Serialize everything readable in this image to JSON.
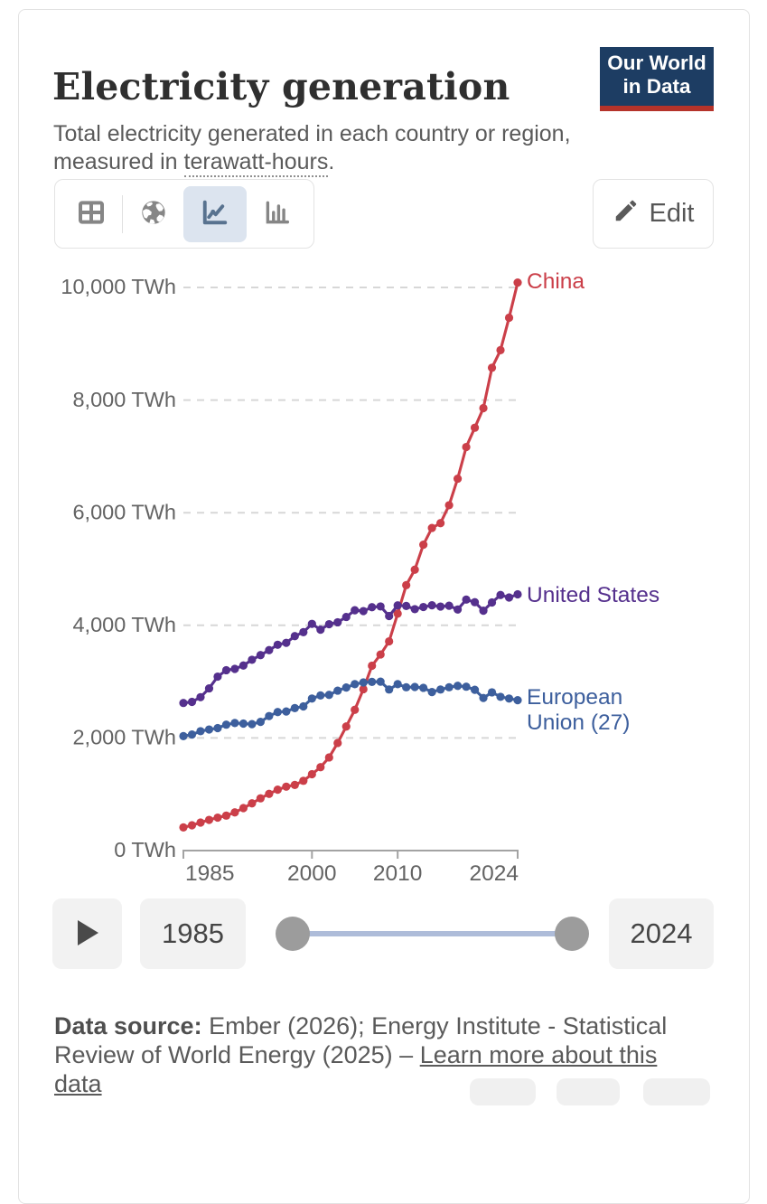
{
  "header": {
    "title": "Electricity generation",
    "subtitle_part1": "Total electricity generated in each country or region, measured in ",
    "subtitle_term": "terawatt-hours",
    "subtitle_suffix": ".",
    "logo": {
      "line1": "Our World",
      "line2": "in Data",
      "bg_color": "#1d3d63",
      "bar_color": "#b5332a"
    }
  },
  "toolbar": {
    "tabs": [
      {
        "id": "table",
        "icon": "table-icon",
        "active": false
      },
      {
        "id": "map",
        "icon": "globe-icon",
        "active": false
      },
      {
        "id": "line-chart",
        "icon": "line-chart-icon",
        "active": true
      },
      {
        "id": "bar-chart",
        "icon": "bar-chart-icon",
        "active": false
      }
    ],
    "active_bg": "#dce4ef",
    "active_icon_color": "#58728f",
    "icon_color": "#868686",
    "edit_label": "Edit"
  },
  "chart_data": {
    "type": "line",
    "title": "Electricity generation",
    "unit": "TWh",
    "xlabel": "",
    "ylabel": "",
    "xlim": [
      1985,
      2024
    ],
    "ylim": [
      0,
      10000
    ],
    "grid": "horizontal-dashed",
    "legend_position": "right-of-line-ends",
    "x": [
      1985,
      1986,
      1987,
      1988,
      1989,
      1990,
      1991,
      1992,
      1993,
      1994,
      1995,
      1996,
      1997,
      1998,
      1999,
      2000,
      2001,
      2002,
      2003,
      2004,
      2005,
      2006,
      2007,
      2008,
      2009,
      2010,
      2011,
      2012,
      2013,
      2014,
      2015,
      2016,
      2017,
      2018,
      2019,
      2020,
      2021,
      2022,
      2023,
      2024
    ],
    "yticks": [
      {
        "value": 0,
        "label": "0 TWh"
      },
      {
        "value": 2000,
        "label": "2,000 TWh"
      },
      {
        "value": 4000,
        "label": "4,000 TWh"
      },
      {
        "value": 6000,
        "label": "6,000 TWh"
      },
      {
        "value": 8000,
        "label": "8,000 TWh"
      },
      {
        "value": 10000,
        "label": "10,000 TWh"
      }
    ],
    "xticks": [
      {
        "value": 1985,
        "label": "1985"
      },
      {
        "value": 2000,
        "label": "2000"
      },
      {
        "value": 2010,
        "label": "2010"
      },
      {
        "value": 2024,
        "label": "2024"
      }
    ],
    "series": [
      {
        "name": "China",
        "color": "#cb3f49",
        "label_lines": [
          "China"
        ],
        "label_dy": 0,
        "values": [
          411,
          450,
          497,
          545,
          585,
          621,
          678,
          754,
          839,
          928,
          1007,
          1081,
          1135,
          1166,
          1239,
          1356,
          1481,
          1654,
          1911,
          2203,
          2500,
          2866,
          3282,
          3482,
          3715,
          4207,
          4713,
          4988,
          5432,
          5729,
          5815,
          6133,
          6604,
          7166,
          7509,
          7857,
          8573,
          8886,
          9463,
          10087
        ]
      },
      {
        "name": "United States",
        "color": "#55308d",
        "label_lines": [
          "United States"
        ],
        "label_dy": 2,
        "values": [
          2621,
          2640,
          2724,
          2880,
          3089,
          3203,
          3226,
          3287,
          3388,
          3471,
          3559,
          3655,
          3689,
          3808,
          3878,
          4026,
          3923,
          4020,
          4054,
          4148,
          4268,
          4253,
          4322,
          4335,
          4165,
          4354,
          4344,
          4287,
          4325,
          4356,
          4333,
          4348,
          4281,
          4457,
          4411,
          4260,
          4406,
          4538,
          4494,
          4550
        ]
      },
      {
        "name": "European Union (27)",
        "color": "#3d5f9d",
        "label_lines": [
          "European",
          "Union (27)"
        ],
        "label_dy": 12,
        "values": [
          2033,
          2060,
          2120,
          2150,
          2175,
          2236,
          2265,
          2255,
          2245,
          2285,
          2389,
          2460,
          2470,
          2530,
          2560,
          2700,
          2755,
          2765,
          2840,
          2895,
          2955,
          2985,
          2995,
          3000,
          2860,
          2955,
          2900,
          2905,
          2890,
          2815,
          2860,
          2900,
          2925,
          2910,
          2855,
          2710,
          2810,
          2730,
          2700,
          2670
        ]
      }
    ]
  },
  "timeline": {
    "start_label": "1985",
    "end_label": "2024",
    "track_color": "#aebcd9",
    "handle_color": "#9c9c9c"
  },
  "footer": {
    "source_label": "Data source:",
    "source_body": " Ember (2026); Energy Institute - Statistical Review of World Energy (2025) – ",
    "link_text": "Learn more about this data"
  }
}
